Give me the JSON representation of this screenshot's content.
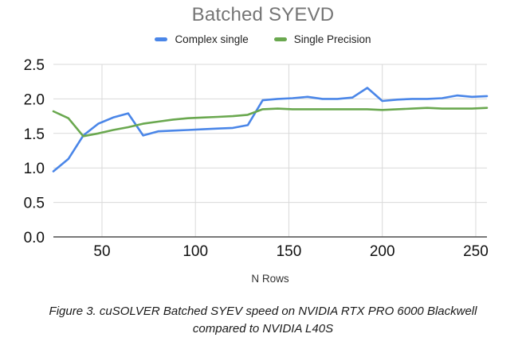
{
  "chart_data": {
    "type": "line",
    "title": "Batched SYEVD",
    "xlabel": "N Rows",
    "ylabel": "",
    "xlim": [
      24,
      256
    ],
    "ylim": [
      0,
      2.5
    ],
    "x_ticks": [
      "50",
      "100",
      "150",
      "200",
      "250"
    ],
    "y_ticks": [
      "0.0",
      "0.5",
      "1.0",
      "1.5",
      "2.0",
      "2.5"
    ],
    "grid": true,
    "legend_position": "top",
    "x": [
      24,
      32,
      40,
      48,
      56,
      64,
      72,
      80,
      88,
      96,
      104,
      112,
      120,
      128,
      136,
      144,
      152,
      160,
      168,
      176,
      184,
      192,
      200,
      208,
      216,
      224,
      232,
      240,
      248,
      256
    ],
    "series": [
      {
        "name": "Complex single",
        "color": "#4a86e8",
        "values": [
          0.95,
          1.13,
          1.47,
          1.64,
          1.73,
          1.79,
          1.47,
          1.53,
          1.54,
          1.55,
          1.56,
          1.57,
          1.58,
          1.62,
          1.98,
          2.0,
          2.01,
          2.03,
          2.0,
          2.0,
          2.02,
          2.16,
          1.97,
          1.99,
          2.0,
          2.0,
          2.01,
          2.05,
          2.03,
          2.04
        ]
      },
      {
        "name": "Single Precision",
        "color": "#6aa84f",
        "values": [
          1.82,
          1.72,
          1.46,
          1.5,
          1.55,
          1.59,
          1.64,
          1.67,
          1.7,
          1.72,
          1.73,
          1.74,
          1.75,
          1.77,
          1.85,
          1.86,
          1.85,
          1.85,
          1.85,
          1.85,
          1.85,
          1.85,
          1.84,
          1.85,
          1.86,
          1.87,
          1.86,
          1.86,
          1.86,
          1.87
        ]
      }
    ]
  },
  "caption": {
    "text": "Figure 3. cuSOLVER Batched SYEV speed on NVIDIA RTX PRO 6000 Blackwell compared to NVIDIA L40S"
  },
  "colors": {
    "grid": "#d9d9d9",
    "axis": "#4d4d4d",
    "title": "#757575",
    "series_blue": "#4a86e8",
    "series_green": "#6aa84f"
  }
}
